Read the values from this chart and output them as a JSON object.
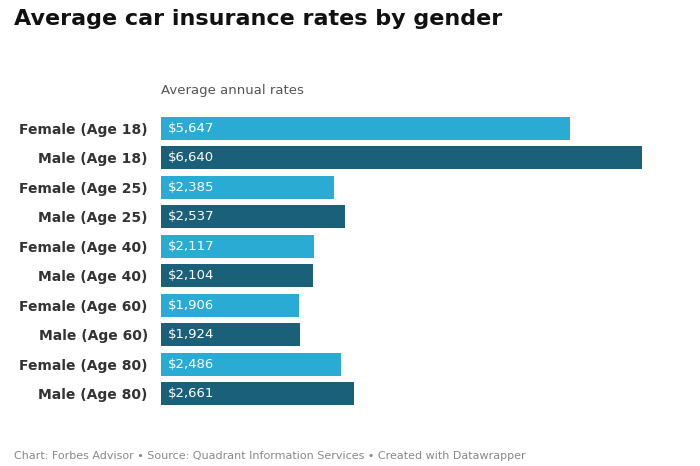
{
  "title": "Average car insurance rates by gender",
  "subtitle": "Average annual rates",
  "categories": [
    "Female (Age 18)",
    "Male (Age 18)",
    "Female (Age 25)",
    "Male (Age 25)",
    "Female (Age 40)",
    "Male (Age 40)",
    "Female (Age 60)",
    "Male (Age 60)",
    "Female (Age 80)",
    "Male (Age 80)"
  ],
  "values": [
    5647,
    6640,
    2385,
    2537,
    2117,
    2104,
    1906,
    1924,
    2486,
    2661
  ],
  "labels": [
    "$5,647",
    "$6,640",
    "$2,385",
    "$2,537",
    "$2,117",
    "$2,104",
    "$1,906",
    "$1,924",
    "$2,486",
    "$2,661"
  ],
  "colors": [
    "#29ABD4",
    "#1A6078",
    "#29ABD4",
    "#1A6078",
    "#29ABD4",
    "#1A6078",
    "#29ABD4",
    "#1A6078",
    "#29ABD4",
    "#1A6078"
  ],
  "background_color": "#FFFFFF",
  "title_fontsize": 16,
  "subtitle_fontsize": 9.5,
  "label_fontsize": 9.5,
  "tick_fontsize": 10,
  "footer": "Chart: Forbes Advisor • Source: Quadrant Information Services • Created with Datawrapper",
  "footer_fontsize": 8,
  "xlim": [
    0,
    7200
  ],
  "bar_height": 0.78
}
